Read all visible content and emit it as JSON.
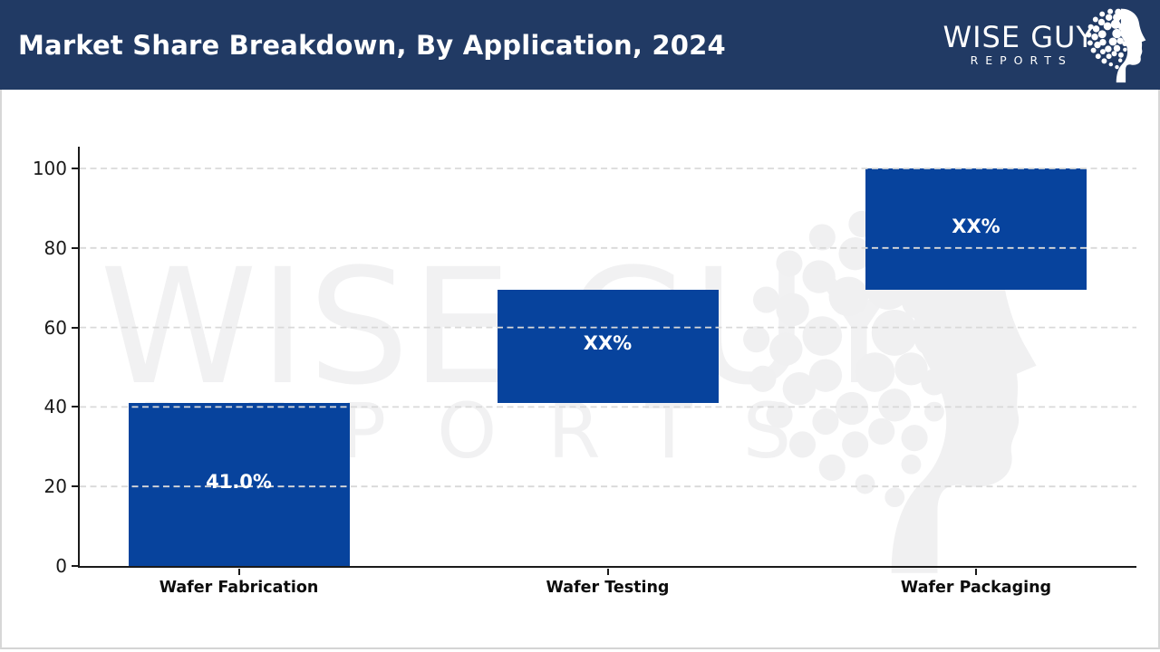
{
  "header": {
    "title": "Market Share Breakdown, By Application, 2024",
    "logo": {
      "line1": "WISE GUY",
      "line2": "REPORTS"
    }
  },
  "watermark": {
    "line1": "WISE GUY",
    "line2": "REPORTS"
  },
  "colors": {
    "header_bg": "#213a64",
    "bar": "#07439d",
    "gridline": "#d9d9d9",
    "axis": "#1a1a1a",
    "bar_label_text": "#ffffff",
    "watermark": "#f1f1f2"
  },
  "chart_data": {
    "type": "bar",
    "subtype": "floating-waterfall",
    "title": "Market Share Breakdown, By Application, 2024",
    "categories": [
      "Wafer Fabrication",
      "Wafer Testing",
      "Wafer Packaging"
    ],
    "series": [
      {
        "name": "Market Share %",
        "ranges": [
          [
            0,
            41.0
          ],
          [
            41.0,
            69.5
          ],
          [
            69.5,
            100.0
          ]
        ]
      }
    ],
    "bar_labels": [
      "41.0%",
      "XX%",
      "XX%"
    ],
    "xlabel": "",
    "ylabel": "",
    "ylim": [
      0,
      105
    ],
    "yticks": [
      0,
      20,
      40,
      60,
      80,
      100
    ],
    "grid": "horizontal-dashed",
    "legend": "none"
  }
}
